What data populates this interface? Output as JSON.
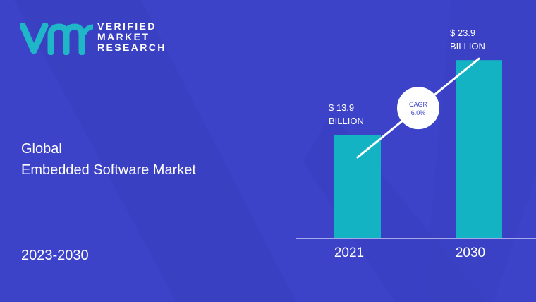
{
  "brand": {
    "line1": "VERIFIED",
    "line2": "MARKET",
    "line3": "RESEARCH",
    "logo_color": "#1fb7c7"
  },
  "report": {
    "title_line1": "Global",
    "title_line2": "Embedded Software Market",
    "period": "2023-2030"
  },
  "colors": {
    "background": "#3d43c9",
    "bar": "#14b3c4"
  },
  "chart_data": {
    "type": "bar",
    "categories": [
      "2021",
      "2030"
    ],
    "values": [
      13.9,
      23.9
    ],
    "data_labels": [
      [
        "$ 13.9",
        "BILLION"
      ],
      [
        "$ 23.9",
        "BILLION"
      ]
    ],
    "annotation": [
      "CAGR",
      "6.0%"
    ],
    "ylim": [
      0,
      26
    ],
    "grid": false,
    "title": "",
    "xlabel": "",
    "ylabel": ""
  }
}
